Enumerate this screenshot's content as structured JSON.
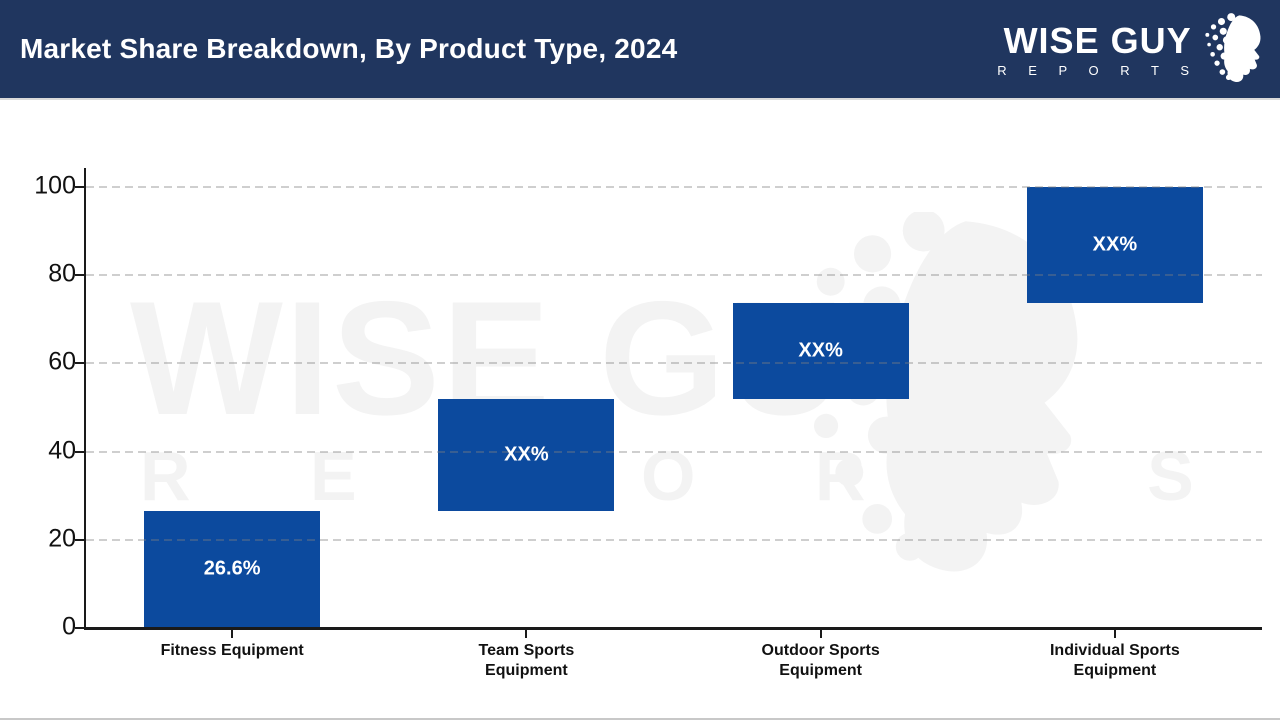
{
  "header": {
    "title": "Market Share Breakdown, By Product Type, 2024",
    "logo_line1": "WISE GUY",
    "logo_line2": "R E P O R T S"
  },
  "watermark": {
    "line1": "WISE GUY",
    "line2": "R E P O R T S"
  },
  "colors": {
    "header_bg": "#20365f",
    "bar": "#0c4a9e",
    "grid": "#d4d4d4",
    "axis": "#1a1a1a",
    "watermark": "#f3f3f3",
    "bar_label_text": "#ffffff"
  },
  "chart_data": {
    "type": "bar",
    "subtype": "waterfall",
    "title": "Market Share Breakdown, By Product Type, 2024",
    "xlabel": "",
    "ylabel": "",
    "ylim": [
      0,
      100
    ],
    "yticks": [
      0,
      20,
      40,
      60,
      80,
      100
    ],
    "grid": "horizontal dashed, drawn over bars",
    "legend": "none",
    "categories": [
      "Fitness Equipment",
      "Team Sports Equipment",
      "Outdoor Sports Equipment",
      "Individual Sports Equipment"
    ],
    "categories_display": [
      [
        "Fitness Equipment"
      ],
      [
        "Team Sports",
        "Equipment"
      ],
      [
        "Outdoor Sports",
        "Equipment"
      ],
      [
        "Individual Sports",
        "Equipment"
      ]
    ],
    "series": [
      {
        "name": "Market Share",
        "segments": [
          {
            "start": 0,
            "end": 26.6,
            "value": 26.6,
            "label": "26.6%"
          },
          {
            "start": 26.6,
            "end": 51.9,
            "value": 25.3,
            "label": "XX%"
          },
          {
            "start": 51.9,
            "end": 73.7,
            "value": 21.8,
            "label": "XX%"
          },
          {
            "start": 73.7,
            "end": 100,
            "value": 26.3,
            "label": "XX%"
          }
        ]
      }
    ]
  }
}
